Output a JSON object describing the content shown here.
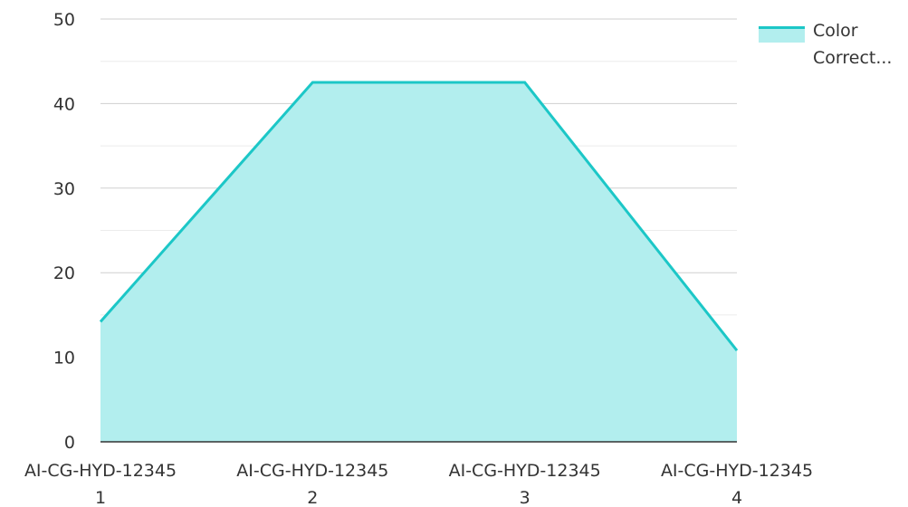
{
  "chart_data": {
    "type": "area",
    "categories": [
      [
        "AI-CG-HYD-12345",
        "1"
      ],
      [
        "AI-CG-HYD-12345",
        "2"
      ],
      [
        "AI-CG-HYD-12345",
        "3"
      ],
      [
        "AI-CG-HYD-12345",
        "4"
      ]
    ],
    "series": [
      {
        "name": "Color Correct...",
        "legend_lines": [
          "Color",
          "Correct..."
        ],
        "values": [
          14.2,
          42.5,
          42.5,
          10.8
        ],
        "line_color": "#1cc7c7",
        "fill_color": "#b2eeee"
      }
    ],
    "ylim": [
      0,
      50
    ],
    "yticks": [
      0,
      10,
      20,
      30,
      40,
      50
    ],
    "grid": true,
    "legend_position": "top-right",
    "title": "",
    "xlabel": "",
    "ylabel": ""
  }
}
